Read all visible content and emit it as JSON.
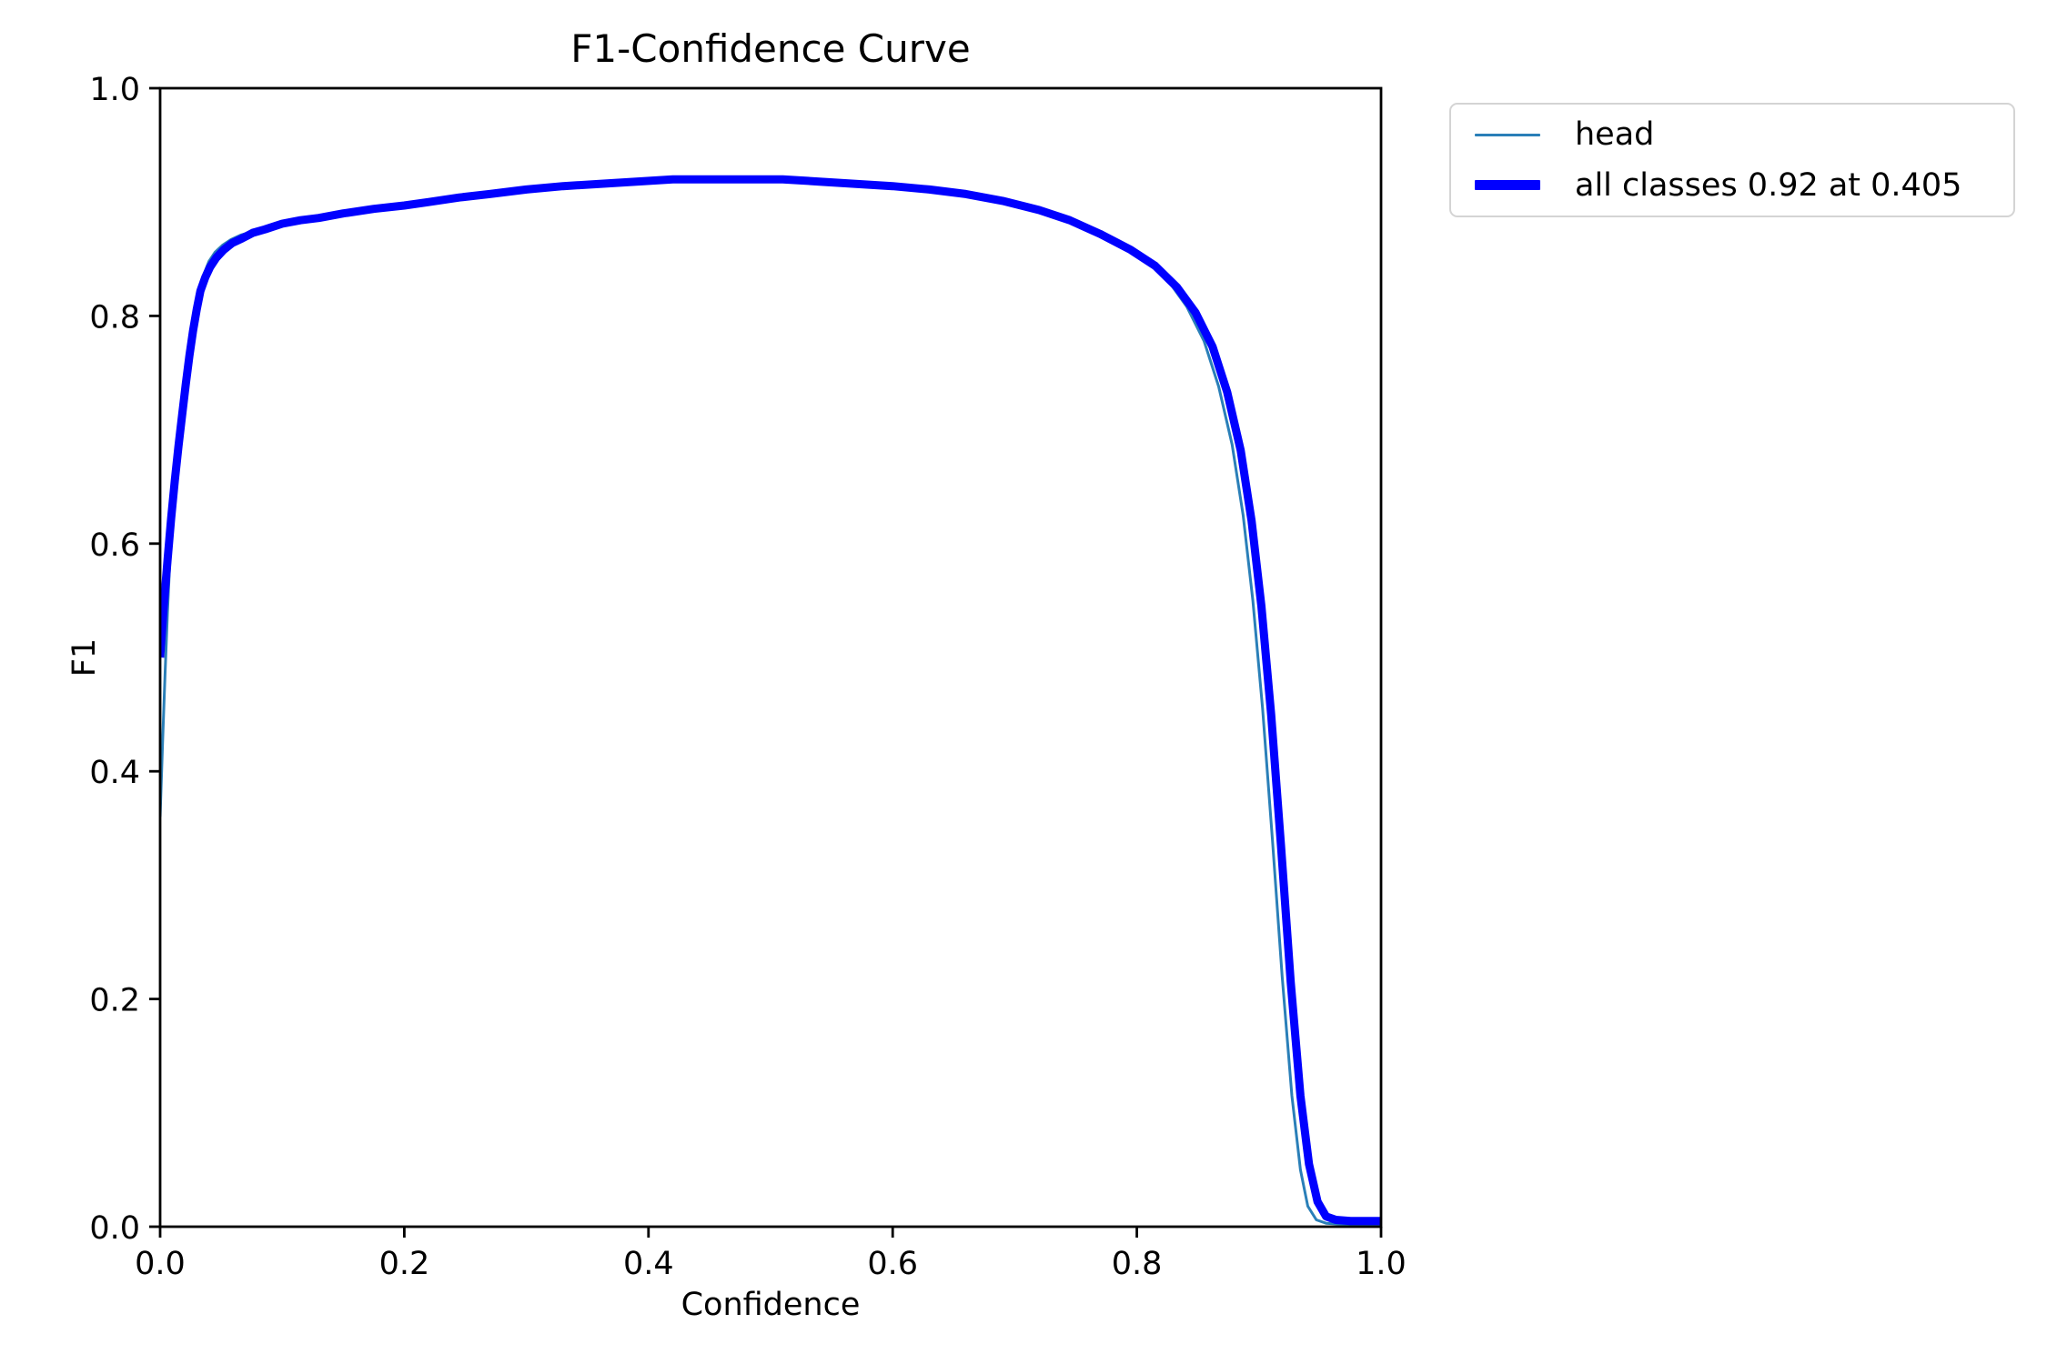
{
  "title": "F1-Confidence Curve",
  "axes": {
    "xlabel": "Confidence",
    "ylabel": "F1",
    "xticks": [
      "0.0",
      "0.2",
      "0.4",
      "0.6",
      "0.8",
      "1.0"
    ],
    "yticks": [
      "0.0",
      "0.2",
      "0.4",
      "0.6",
      "0.8",
      "1.0"
    ]
  },
  "legend": {
    "entries": [
      {
        "label": "head",
        "color": "#2a7fb8",
        "thickness": 3
      },
      {
        "label": "all classes 0.92 at 0.405",
        "color": "#0000ff",
        "thickness": 11
      }
    ]
  },
  "colors": {
    "head_line": "#2a7fb8",
    "all_classes_line": "#0000ff",
    "spine": "#000000",
    "legend_border": "#d4d4d4",
    "background": "#ffffff"
  },
  "chart_data": {
    "type": "line",
    "title": "F1-Confidence Curve",
    "xlabel": "Confidence",
    "ylabel": "F1",
    "xlim": [
      0.0,
      1.0
    ],
    "ylim": [
      0.0,
      1.0
    ],
    "grid": false,
    "legend_position": "outside upper right",
    "best_f1": 0.92,
    "best_confidence": 0.405,
    "series": [
      {
        "name": "head",
        "color": "#2a7fb8",
        "width": 3,
        "points": [
          [
            0.0,
            0.36
          ],
          [
            0.002,
            0.425
          ],
          [
            0.004,
            0.485
          ],
          [
            0.006,
            0.54
          ],
          [
            0.008,
            0.585
          ],
          [
            0.011,
            0.63
          ],
          [
            0.014,
            0.668
          ],
          [
            0.017,
            0.702
          ],
          [
            0.02,
            0.733
          ],
          [
            0.023,
            0.76
          ],
          [
            0.026,
            0.784
          ],
          [
            0.029,
            0.805
          ],
          [
            0.032,
            0.822
          ],
          [
            0.036,
            0.837
          ],
          [
            0.04,
            0.848
          ],
          [
            0.045,
            0.856
          ],
          [
            0.051,
            0.862
          ],
          [
            0.058,
            0.867
          ],
          [
            0.066,
            0.871
          ],
          [
            0.076,
            0.874
          ],
          [
            0.086,
            0.877
          ],
          [
            0.1,
            0.881
          ],
          [
            0.115,
            0.884
          ],
          [
            0.13,
            0.886
          ],
          [
            0.15,
            0.89
          ],
          [
            0.175,
            0.894
          ],
          [
            0.2,
            0.897
          ],
          [
            0.22,
            0.9
          ],
          [
            0.245,
            0.904
          ],
          [
            0.27,
            0.907
          ],
          [
            0.3,
            0.911
          ],
          [
            0.33,
            0.914
          ],
          [
            0.36,
            0.916
          ],
          [
            0.39,
            0.918
          ],
          [
            0.42,
            0.919
          ],
          [
            0.45,
            0.92
          ],
          [
            0.48,
            0.92
          ],
          [
            0.51,
            0.919
          ],
          [
            0.54,
            0.918
          ],
          [
            0.57,
            0.916
          ],
          [
            0.6,
            0.914
          ],
          [
            0.63,
            0.911
          ],
          [
            0.66,
            0.907
          ],
          [
            0.69,
            0.901
          ],
          [
            0.72,
            0.893
          ],
          [
            0.745,
            0.884
          ],
          [
            0.77,
            0.872
          ],
          [
            0.795,
            0.858
          ],
          [
            0.813,
            0.845
          ],
          [
            0.827,
            0.829
          ],
          [
            0.841,
            0.808
          ],
          [
            0.855,
            0.778
          ],
          [
            0.867,
            0.738
          ],
          [
            0.878,
            0.687
          ],
          [
            0.887,
            0.625
          ],
          [
            0.895,
            0.55
          ],
          [
            0.903,
            0.455
          ],
          [
            0.911,
            0.34
          ],
          [
            0.919,
            0.22
          ],
          [
            0.927,
            0.115
          ],
          [
            0.934,
            0.05
          ],
          [
            0.94,
            0.018
          ],
          [
            0.947,
            0.006
          ],
          [
            0.955,
            0.003
          ],
          [
            0.97,
            0.002
          ],
          [
            1.0,
            0.002
          ]
        ]
      },
      {
        "name": "all classes 0.92 at 0.405",
        "color": "#0000ff",
        "width": 9,
        "points": [
          [
            0.0,
            0.5
          ],
          [
            0.003,
            0.545
          ],
          [
            0.006,
            0.585
          ],
          [
            0.009,
            0.622
          ],
          [
            0.012,
            0.655
          ],
          [
            0.015,
            0.685
          ],
          [
            0.018,
            0.713
          ],
          [
            0.021,
            0.74
          ],
          [
            0.024,
            0.765
          ],
          [
            0.027,
            0.787
          ],
          [
            0.03,
            0.806
          ],
          [
            0.033,
            0.822
          ],
          [
            0.037,
            0.834
          ],
          [
            0.041,
            0.843
          ],
          [
            0.046,
            0.851
          ],
          [
            0.052,
            0.858
          ],
          [
            0.059,
            0.864
          ],
          [
            0.067,
            0.868
          ],
          [
            0.076,
            0.873
          ],
          [
            0.086,
            0.876
          ],
          [
            0.1,
            0.881
          ],
          [
            0.115,
            0.884
          ],
          [
            0.13,
            0.886
          ],
          [
            0.15,
            0.89
          ],
          [
            0.175,
            0.894
          ],
          [
            0.2,
            0.897
          ],
          [
            0.22,
            0.9
          ],
          [
            0.245,
            0.904
          ],
          [
            0.27,
            0.907
          ],
          [
            0.3,
            0.911
          ],
          [
            0.33,
            0.914
          ],
          [
            0.36,
            0.916
          ],
          [
            0.39,
            0.918
          ],
          [
            0.42,
            0.92
          ],
          [
            0.45,
            0.92
          ],
          [
            0.48,
            0.92
          ],
          [
            0.51,
            0.92
          ],
          [
            0.54,
            0.918
          ],
          [
            0.57,
            0.916
          ],
          [
            0.6,
            0.914
          ],
          [
            0.63,
            0.911
          ],
          [
            0.66,
            0.907
          ],
          [
            0.69,
            0.901
          ],
          [
            0.72,
            0.893
          ],
          [
            0.745,
            0.884
          ],
          [
            0.77,
            0.872
          ],
          [
            0.795,
            0.858
          ],
          [
            0.815,
            0.844
          ],
          [
            0.833,
            0.825
          ],
          [
            0.848,
            0.803
          ],
          [
            0.862,
            0.773
          ],
          [
            0.874,
            0.733
          ],
          [
            0.885,
            0.682
          ],
          [
            0.894,
            0.62
          ],
          [
            0.902,
            0.545
          ],
          [
            0.91,
            0.45
          ],
          [
            0.918,
            0.335
          ],
          [
            0.926,
            0.215
          ],
          [
            0.934,
            0.115
          ],
          [
            0.941,
            0.055
          ],
          [
            0.948,
            0.022
          ],
          [
            0.955,
            0.009
          ],
          [
            0.963,
            0.006
          ],
          [
            0.975,
            0.005
          ],
          [
            1.0,
            0.005
          ]
        ]
      }
    ]
  }
}
